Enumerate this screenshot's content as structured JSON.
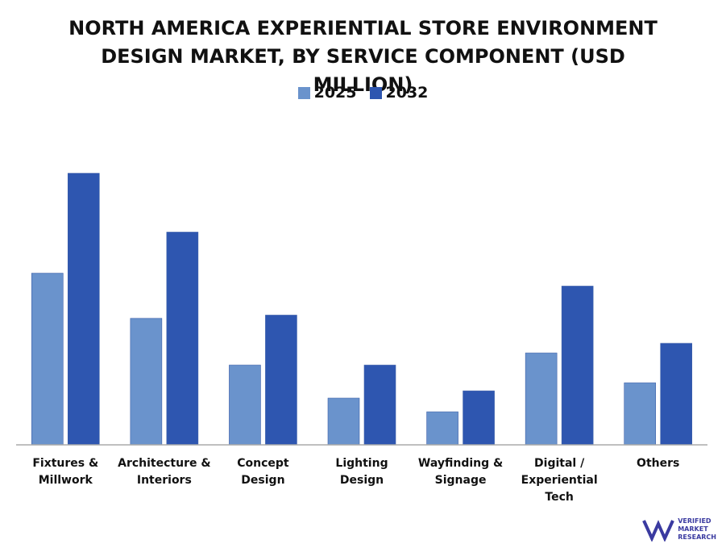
{
  "chart_data": {
    "type": "bar",
    "title": "NORTH AMERICA EXPERIENTIAL STORE ENVIRONMENT DESIGN MARKET, BY SERVICE COMPONENT (USD MILLION)",
    "categories": [
      "Fixtures & Millwork",
      "Architecture & Interiors",
      "Concept Design",
      "Lighting Design",
      "Wayfinding & Signage",
      "Digital / Experiential Tech",
      "Others"
    ],
    "series": [
      {
        "name": "2025",
        "color": "#6a93cc",
        "values": [
          213,
          157,
          99,
          58,
          41,
          114,
          77
        ]
      },
      {
        "name": "2032",
        "color": "#2e56b0",
        "values": [
          337,
          264,
          161,
          99,
          67,
          197,
          126
        ]
      }
    ],
    "legend": "top"
  },
  "logo": {
    "line1": "VERIFIED",
    "line2": "MARKET",
    "line3": "RESEARCH"
  }
}
